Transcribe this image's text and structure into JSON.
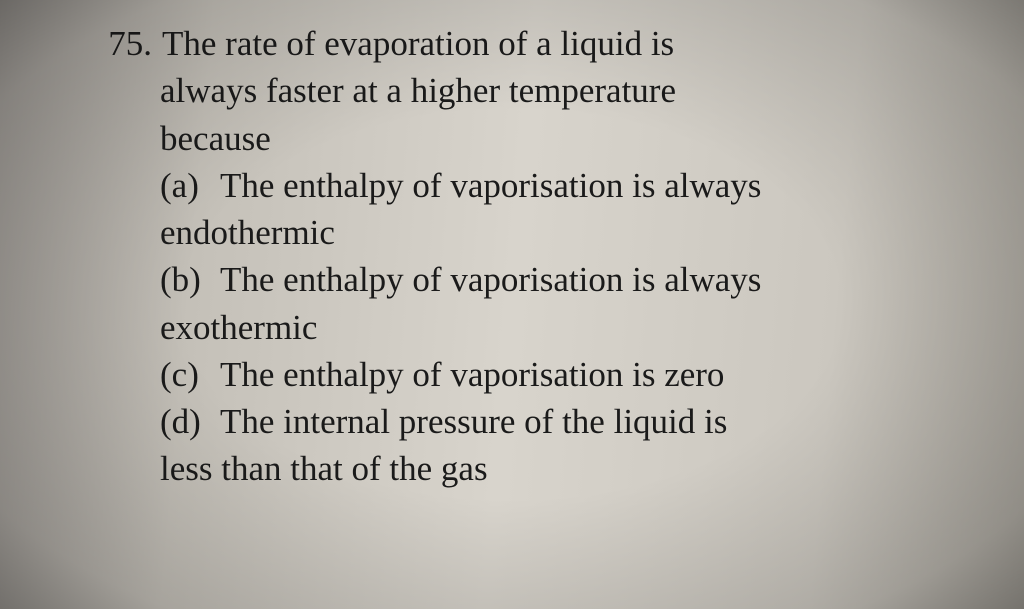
{
  "question": {
    "number": "75.",
    "stem_line1": "The rate of evaporation of a liquid is",
    "stem_line2": "always faster at a higher temperature",
    "stem_line3": "because",
    "options": {
      "a": {
        "label": "(a)",
        "line1": "The enthalpy of vaporisation is always",
        "line2": "endothermic"
      },
      "b": {
        "label": "(b)",
        "line1": "The enthalpy of vaporisation is always",
        "line2": "exothermic"
      },
      "c": {
        "label": "(c)",
        "line1": "The enthalpy of vaporisation is zero"
      },
      "d": {
        "label": "(d)",
        "line1": "The internal pressure of the liquid is",
        "line2": "less than that of the gas"
      }
    }
  },
  "style": {
    "text_color": "#1a1a1a",
    "font_size_pt": 26,
    "font_family": "Georgia, serif"
  }
}
